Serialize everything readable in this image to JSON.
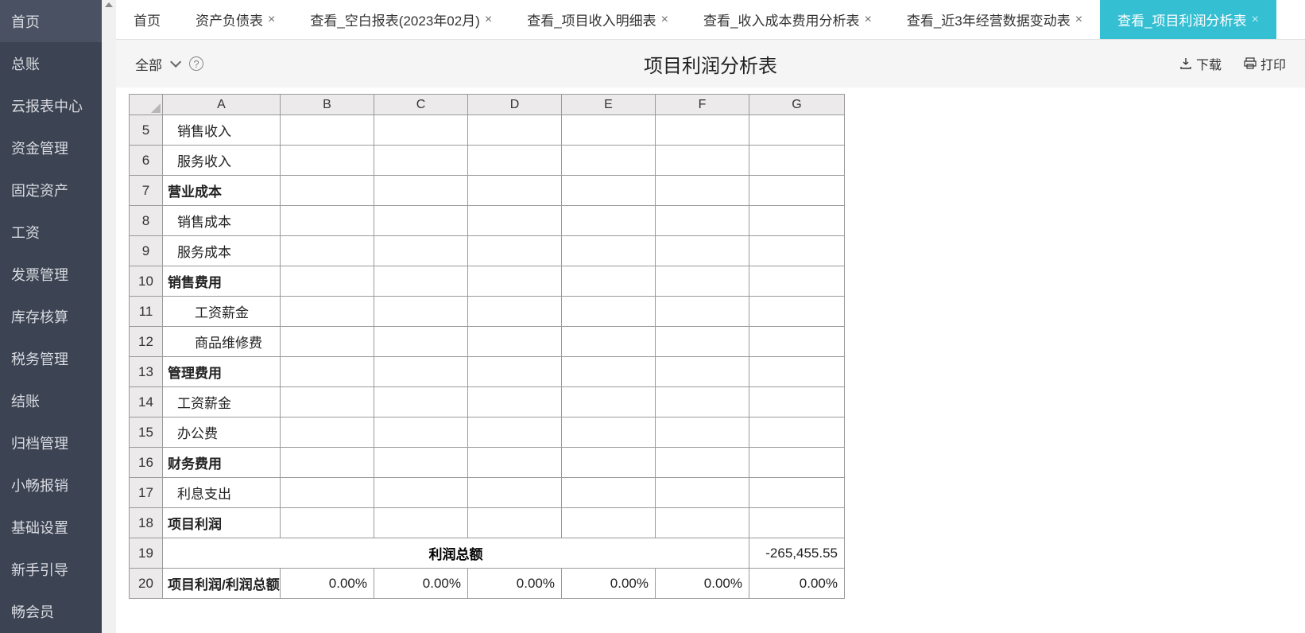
{
  "sidebar": {
    "items": [
      {
        "label": "首页"
      },
      {
        "label": "总账"
      },
      {
        "label": "云报表中心"
      },
      {
        "label": "资金管理"
      },
      {
        "label": "固定资产"
      },
      {
        "label": "工资"
      },
      {
        "label": "发票管理"
      },
      {
        "label": "库存核算"
      },
      {
        "label": "税务管理"
      },
      {
        "label": "结账"
      },
      {
        "label": "归档管理"
      },
      {
        "label": "小畅报销"
      },
      {
        "label": "基础设置"
      },
      {
        "label": "新手引导"
      },
      {
        "label": "畅会员"
      }
    ]
  },
  "tabs": [
    {
      "label": "首页",
      "closable": false,
      "active": false
    },
    {
      "label": "资产负债表",
      "closable": true,
      "active": false
    },
    {
      "label": "查看_空白报表(2023年02月)",
      "closable": true,
      "active": false
    },
    {
      "label": "查看_项目收入明细表",
      "closable": true,
      "active": false
    },
    {
      "label": "查看_收入成本费用分析表",
      "closable": true,
      "active": false
    },
    {
      "label": "查看_近3年经营数据变动表",
      "closable": true,
      "active": false
    },
    {
      "label": "查看_项目利润分析表",
      "closable": true,
      "active": true
    }
  ],
  "toolbar": {
    "filter_label": "全部",
    "page_title": "项目利润分析表",
    "download_label": "下载",
    "print_label": "打印"
  },
  "sheet": {
    "columns": [
      "A",
      "B",
      "C",
      "D",
      "E",
      "F",
      "G"
    ],
    "col_widths": {
      "rowhdr": 42,
      "A": 148,
      "data": 118,
      "G": 120
    },
    "row_start": 5,
    "rows": [
      {
        "n": 5,
        "a": "销售收入",
        "indent": 1,
        "bold": false
      },
      {
        "n": 6,
        "a": "服务收入",
        "indent": 1,
        "bold": false
      },
      {
        "n": 7,
        "a": "营业成本",
        "indent": 0,
        "bold": true
      },
      {
        "n": 8,
        "a": "销售成本",
        "indent": 1,
        "bold": false
      },
      {
        "n": 9,
        "a": "服务成本",
        "indent": 1,
        "bold": false
      },
      {
        "n": 10,
        "a": "销售费用",
        "indent": 0,
        "bold": true
      },
      {
        "n": 11,
        "a": "工资薪金",
        "indent": 2,
        "bold": false
      },
      {
        "n": 12,
        "a": "商品维修费",
        "indent": 2,
        "bold": false
      },
      {
        "n": 13,
        "a": "管理费用",
        "indent": 0,
        "bold": true
      },
      {
        "n": 14,
        "a": "工资薪金",
        "indent": 1,
        "bold": false
      },
      {
        "n": 15,
        "a": "办公费",
        "indent": 1,
        "bold": false
      },
      {
        "n": 16,
        "a": "财务费用",
        "indent": 0,
        "bold": true
      },
      {
        "n": 17,
        "a": "利息支出",
        "indent": 1,
        "bold": false
      },
      {
        "n": 18,
        "a": "项目利润",
        "indent": 0,
        "bold": true
      }
    ],
    "row19": {
      "n": 19,
      "merged_label": "利润总额",
      "g": "-265,455.55"
    },
    "row20": {
      "n": 20,
      "a": "项目利润/利润总额",
      "b": "0.00%",
      "c": "0.00%",
      "d": "0.00%",
      "e": "0.00%",
      "f": "0.00%",
      "g": "0.00%"
    }
  },
  "colors": {
    "sidebar_bg": "#3c4353",
    "sidebar_text": "#d9dbe0",
    "tab_active_bg": "#34bfd3",
    "toolbar_bg": "#f5f5f5",
    "grid_border": "#9a9a9a",
    "header_bg": "#eceaea"
  }
}
